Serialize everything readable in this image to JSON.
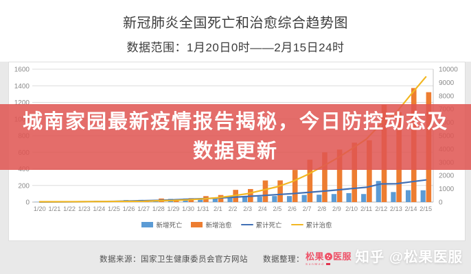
{
  "header": {
    "title": "新冠肺炎全国死亡和治愈综合趋势图",
    "subtitle": "数据范围：1月20日0时——2月15日24时"
  },
  "overlay": {
    "line1": "城南家园最新疫情报告揭秘，今日防控动态及",
    "line2": "数据更新",
    "bg_color": "rgba(224,85,82,0.86)",
    "text_color": "#ffffff"
  },
  "footer": {
    "source_label": "数据来源：",
    "source": "国家卫生健康委员会官方网站",
    "curation_label": "数据整理：",
    "brand_left": "松果",
    "brand_right": "医服",
    "brand_sub": "SonMed",
    "brand_color": "#ee5268",
    "brand_block_color": "#e0314b",
    "watermark": "知乎 @松果医服"
  },
  "chart_data": {
    "type": "bar+line combo",
    "title": "新冠肺炎全国死亡和治愈综合趋势图",
    "x": [
      "1/20",
      "1/21",
      "1/22",
      "1/23",
      "1/24",
      "1/25",
      "1/26",
      "1/27",
      "1/28",
      "1/29",
      "1/30",
      "1/31",
      "2/1",
      "2/2",
      "2/3",
      "2/4",
      "2/5",
      "2/6",
      "2/7",
      "2/8",
      "2/9",
      "2/10",
      "2/11",
      "2/12",
      "2/13",
      "2/14",
      "2/15"
    ],
    "series": [
      {
        "name": "新增死亡",
        "type": "bar",
        "axis": "left",
        "color": "#5B9BD5",
        "values": [
          3,
          3,
          8,
          8,
          16,
          15,
          24,
          26,
          26,
          38,
          43,
          46,
          45,
          57,
          64,
          65,
          73,
          73,
          86,
          89,
          97,
          108,
          97,
          254,
          121,
          143,
          142
        ]
      },
      {
        "name": "新增治愈",
        "type": "bar",
        "axis": "left",
        "color": "#ED7D31",
        "values": [
          0,
          0,
          3,
          6,
          4,
          11,
          2,
          9,
          43,
          21,
          47,
          72,
          85,
          147,
          157,
          260,
          261,
          387,
          510,
          599,
          632,
          715,
          744,
          1171,
          1081,
          1373,
          1323
        ]
      },
      {
        "name": "累计死亡",
        "type": "line",
        "axis": "right",
        "color": "#3F6FB5",
        "values": [
          6,
          9,
          17,
          25,
          41,
          56,
          80,
          106,
          132,
          170,
          213,
          259,
          304,
          361,
          425,
          490,
          563,
          636,
          722,
          811,
          908,
          1016,
          1113,
          1367,
          1380,
          1523,
          1665
        ]
      },
      {
        "name": "累计治愈",
        "type": "line",
        "axis": "right",
        "color": "#F2B722",
        "values": [
          25,
          25,
          28,
          34,
          38,
          49,
          51,
          60,
          103,
          124,
          171,
          243,
          328,
          475,
          632,
          892,
          1153,
          1540,
          2050,
          2649,
          3281,
          3996,
          4740,
          5911,
          6723,
          8096,
          9419
        ]
      }
    ],
    "left_axis": {
      "min": 0,
      "max": 1600,
      "step": 200
    },
    "right_axis": {
      "min": 0,
      "max": 10000,
      "step": 1000
    },
    "grid": true,
    "legend_position": "bottom"
  }
}
